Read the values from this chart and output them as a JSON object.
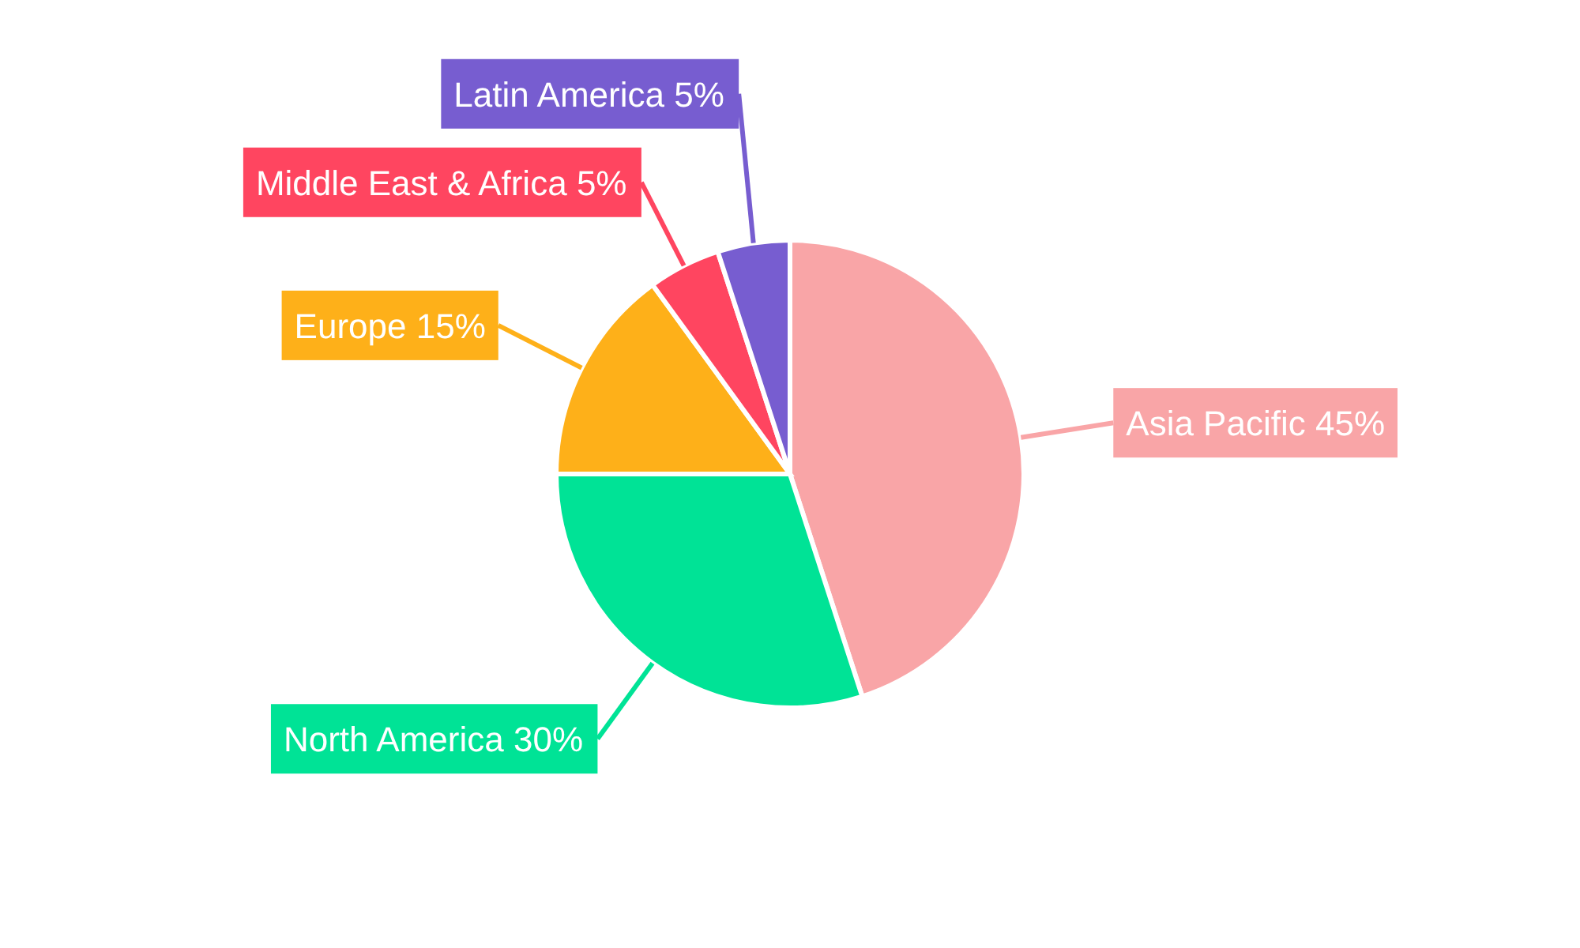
{
  "chart_data": {
    "type": "pie",
    "categories": [
      "Asia Pacific",
      "North America",
      "Europe",
      "Middle East & Africa",
      "Latin America"
    ],
    "values": [
      45,
      30,
      15,
      5,
      5
    ],
    "colors": [
      "#f9a5a7",
      "#00e396",
      "#feb019",
      "#ff4560",
      "#775dd0"
    ],
    "value_labels": [
      "45%",
      "30%",
      "15%",
      "5%",
      "5%"
    ]
  }
}
